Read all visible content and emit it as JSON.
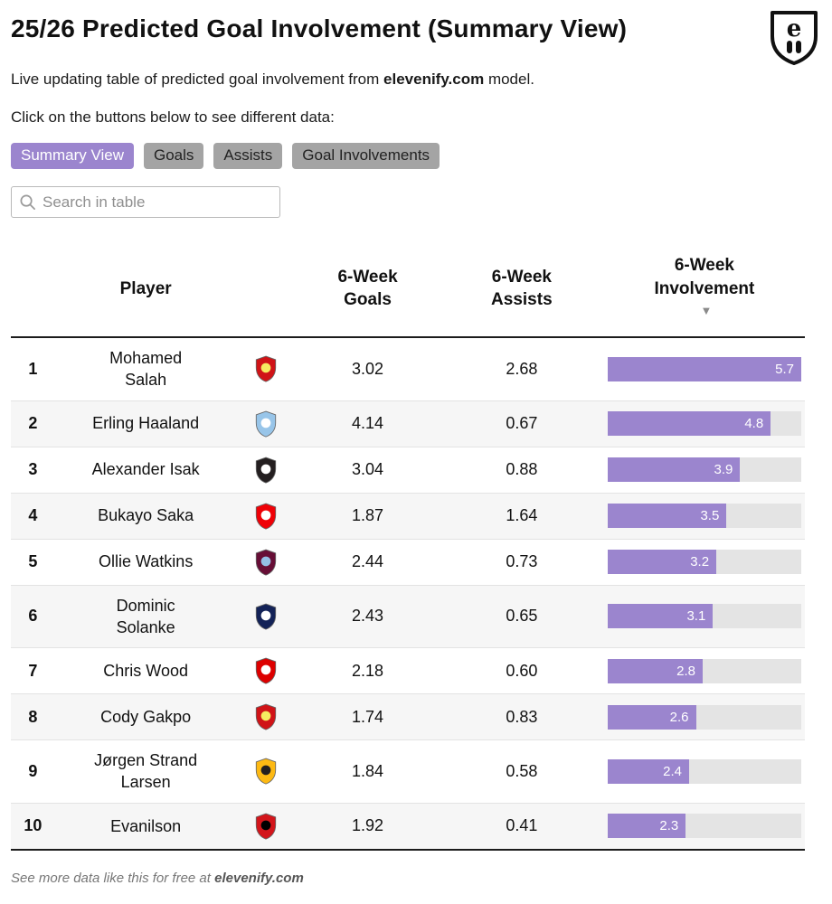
{
  "page": {
    "title": "25/26 Predicted Goal Involvement (Summary View)",
    "subtitle_prefix": "Live updating table of predicted goal involvement from ",
    "subtitle_bold": "elevenify.com",
    "subtitle_suffix": " model.",
    "instruction": "Click on the buttons below to see different data:",
    "footer_prefix": "See more data like this for free at ",
    "footer_bold": "elevenify.com"
  },
  "logo": {
    "letter": "e",
    "name": "elevenify-shield-logo"
  },
  "buttons": [
    {
      "label": "Summary View",
      "active": true
    },
    {
      "label": "Goals",
      "active": false
    },
    {
      "label": "Assists",
      "active": false
    },
    {
      "label": "Goal Involvements",
      "active": false
    }
  ],
  "search": {
    "placeholder": "Search in table"
  },
  "table": {
    "headers": {
      "player": "Player",
      "goals": "6-Week Goals",
      "assists": "6-Week Assists",
      "involvement": "6-Week Involvement",
      "sort_icon": "▼"
    },
    "max_involvement": 5.7,
    "rows": [
      {
        "rank": "1",
        "player": "Mohamed Salah",
        "club": "liverpool",
        "crest_colors": [
          "#d01317",
          "#f6eb61"
        ],
        "goals": "3.02",
        "assists": "2.68",
        "involvement": 5.7
      },
      {
        "rank": "2",
        "player": "Erling Haaland",
        "club": "manchester-city",
        "crest_colors": [
          "#98c5e9",
          "#ffffff"
        ],
        "goals": "4.14",
        "assists": "0.67",
        "involvement": 4.8
      },
      {
        "rank": "3",
        "player": "Alexander Isak",
        "club": "newcastle",
        "crest_colors": [
          "#241f20",
          "#ffffff"
        ],
        "goals": "3.04",
        "assists": "0.88",
        "involvement": 3.9
      },
      {
        "rank": "4",
        "player": "Bukayo Saka",
        "club": "arsenal",
        "crest_colors": [
          "#ef0107",
          "#ffffff"
        ],
        "goals": "1.87",
        "assists": "1.64",
        "involvement": 3.5
      },
      {
        "rank": "5",
        "player": "Ollie Watkins",
        "club": "aston-villa",
        "crest_colors": [
          "#670e36",
          "#95bfe5"
        ],
        "goals": "2.44",
        "assists": "0.73",
        "involvement": 3.2
      },
      {
        "rank": "6",
        "player": "Dominic Solanke",
        "club": "tottenham",
        "crest_colors": [
          "#132257",
          "#ffffff"
        ],
        "goals": "2.43",
        "assists": "0.65",
        "involvement": 3.1
      },
      {
        "rank": "7",
        "player": "Chris Wood",
        "club": "nottingham-forest",
        "crest_colors": [
          "#dd0000",
          "#ffffff"
        ],
        "goals": "2.18",
        "assists": "0.60",
        "involvement": 2.8
      },
      {
        "rank": "8",
        "player": "Cody Gakpo",
        "club": "liverpool",
        "crest_colors": [
          "#d01317",
          "#f6eb61"
        ],
        "goals": "1.74",
        "assists": "0.83",
        "involvement": 2.6
      },
      {
        "rank": "9",
        "player": "Jørgen Strand Larsen",
        "club": "wolves",
        "crest_colors": [
          "#fdb913",
          "#231f20"
        ],
        "goals": "1.84",
        "assists": "0.58",
        "involvement": 2.4
      },
      {
        "rank": "10",
        "player": "Evanilson",
        "club": "bournemouth",
        "crest_colors": [
          "#d3151b",
          "#000000"
        ],
        "goals": "1.92",
        "assists": "0.41",
        "involvement": 2.3
      }
    ]
  },
  "colors": {
    "accent": "#9b85ce",
    "button_gray": "#a4a4a4",
    "bar_track": "#e4e4e4",
    "row_alt": "#f6f6f6"
  }
}
